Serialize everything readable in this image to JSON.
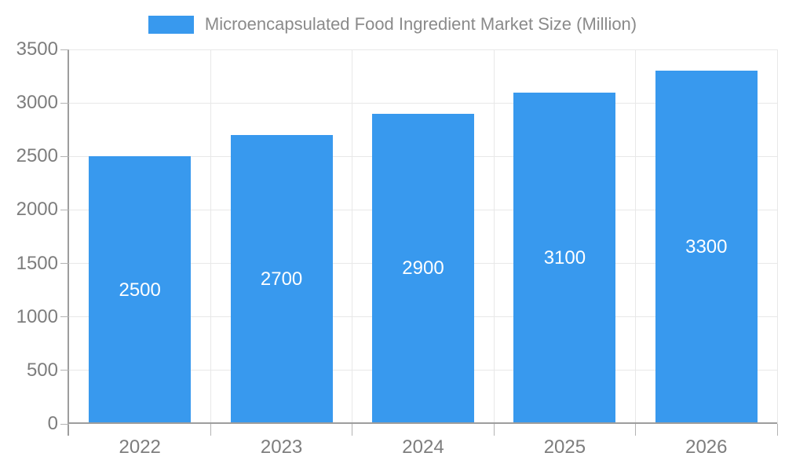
{
  "legend": {
    "position": "top"
  },
  "chart_data": {
    "type": "bar",
    "title": "",
    "series_name": "Microencapsulated Food Ingredient Market Size (Million)",
    "categories": [
      "2022",
      "2023",
      "2024",
      "2025",
      "2026"
    ],
    "values": [
      2500,
      2700,
      2900,
      3100,
      3300
    ],
    "xlabel": "",
    "ylabel": "",
    "ylim": [
      0,
      3500
    ],
    "yticks": [
      0,
      500,
      1000,
      1500,
      2000,
      2500,
      3000,
      3500
    ],
    "grid": true,
    "legend_position": "top",
    "value_labels_inside_bars": true,
    "colors": {
      "bar": "#3899ee",
      "value_label": "#ffffff",
      "axis_text": "#7d7d7d",
      "legend_text": "#8a8a8a",
      "gridline": "#e8e8e8",
      "axis_line": "#9d9d9d",
      "tick": "#b3b3b3",
      "background": "#ffffff"
    }
  }
}
